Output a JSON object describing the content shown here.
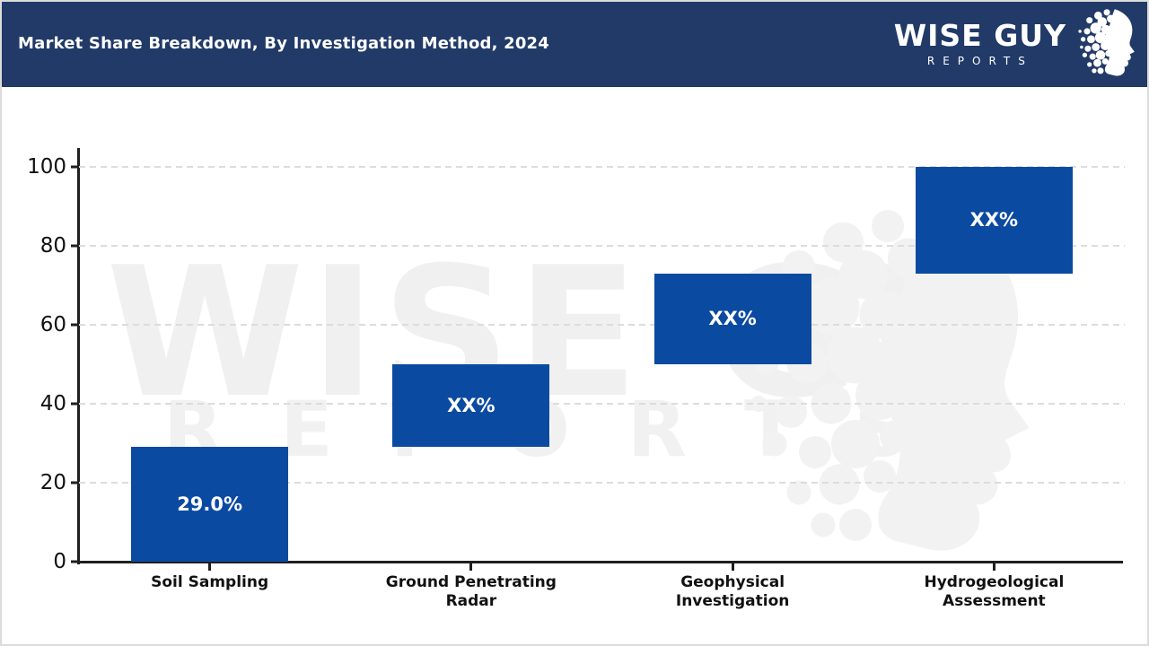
{
  "header": {
    "title": "Market Share Breakdown, By Investigation Method, 2024",
    "bg_color": "#213a67",
    "logo": {
      "line1": "WISE GUY",
      "line2": "REPORTS"
    }
  },
  "watermark": {
    "line1": "WISE GU",
    "line2": "R E P O R T S"
  },
  "chart_data": {
    "type": "bar",
    "variant": "waterfall",
    "title": "Market Share Breakdown, By Investigation Method, 2024",
    "categories": [
      "Soil Sampling",
      "Ground Penetrating Radar",
      "Geophysical Investigation",
      "Hydrogeological Assessment"
    ],
    "segments": [
      {
        "category": "Soil Sampling",
        "start": 0,
        "end": 29,
        "value": 29,
        "label": "29.0%"
      },
      {
        "category": "Ground Penetrating Radar",
        "start": 29,
        "end": 50,
        "value": 21,
        "label": "XX%"
      },
      {
        "category": "Geophysical Investigation",
        "start": 50,
        "end": 73,
        "value": 23,
        "label": "XX%"
      },
      {
        "category": "Hydrogeological Assessment",
        "start": 73,
        "end": 100,
        "value": 27,
        "label": "XX%"
      }
    ],
    "xlabel": "",
    "ylabel": "",
    "ylim": [
      0,
      105
    ],
    "yticks": [
      0,
      20,
      40,
      60,
      80,
      100
    ],
    "grid": {
      "horizontal": true,
      "style": "dashed",
      "color": "#dcdcdc"
    },
    "legend": "none",
    "bar_color": "#0b4aa1",
    "bar_label_color": "#ffffff",
    "axis_color": "#1f1f1f"
  }
}
